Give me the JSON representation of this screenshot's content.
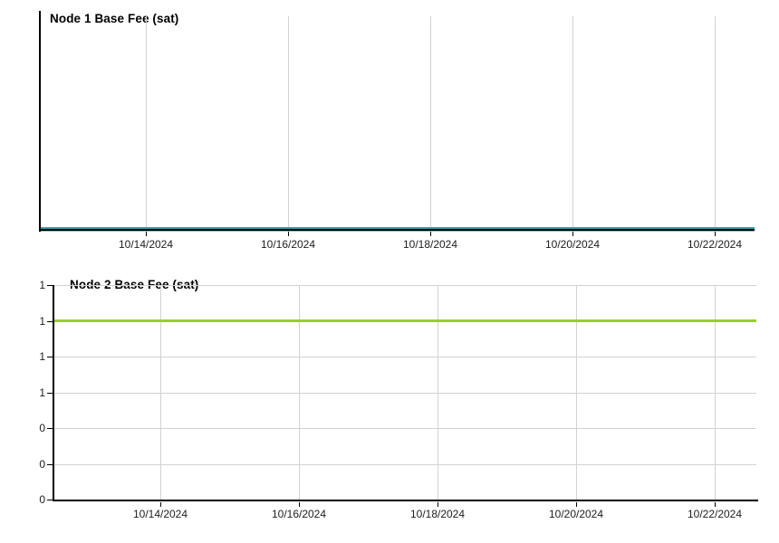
{
  "chart_data": [
    {
      "type": "line",
      "title": "Node 1 Base Fee (sat)",
      "xlabel": "",
      "ylabel": "",
      "x_tick_labels": [
        "10/14/2024",
        "10/16/2024",
        "10/18/2024",
        "10/20/2024",
        "10/22/2024"
      ],
      "y_tick_labels": [],
      "series": [
        {
          "name": "Node 1 Base Fee (sat)",
          "values": [
            0,
            0,
            0,
            0,
            0
          ],
          "constant_value": 0,
          "color": "#2E99A8"
        }
      ],
      "grid": true,
      "legend": "none",
      "y_axis_labels_visible": false,
      "line_position": "flat line at 0, on the x-axis"
    },
    {
      "type": "line",
      "title": "Node 2 Base Fee (sat)",
      "xlabel": "",
      "ylabel": "",
      "x_tick_labels": [
        "10/14/2024",
        "10/16/2024",
        "10/18/2024",
        "10/20/2024",
        "10/22/2024"
      ],
      "y_tick_labels": [
        "1",
        "1",
        "1",
        "1",
        "0",
        "0",
        "0"
      ],
      "ylim": [
        0,
        1.2
      ],
      "series": [
        {
          "name": "Node 2 Base Fee (sat)",
          "values": [
            1,
            1,
            1,
            1,
            1
          ],
          "constant_value": 1,
          "color": "#9ACD32"
        }
      ],
      "grid": true,
      "legend": "none",
      "y_axis_labels_visible": true,
      "line_position": "flat line at 1, second gridline from top"
    }
  ],
  "colors": {
    "background": "#ffffff",
    "gridline": "#d2d2d2",
    "axis": "#000000",
    "tick_label": "#202020",
    "node1_line": "#2E99A8",
    "node2_line": "#9ACD32"
  }
}
